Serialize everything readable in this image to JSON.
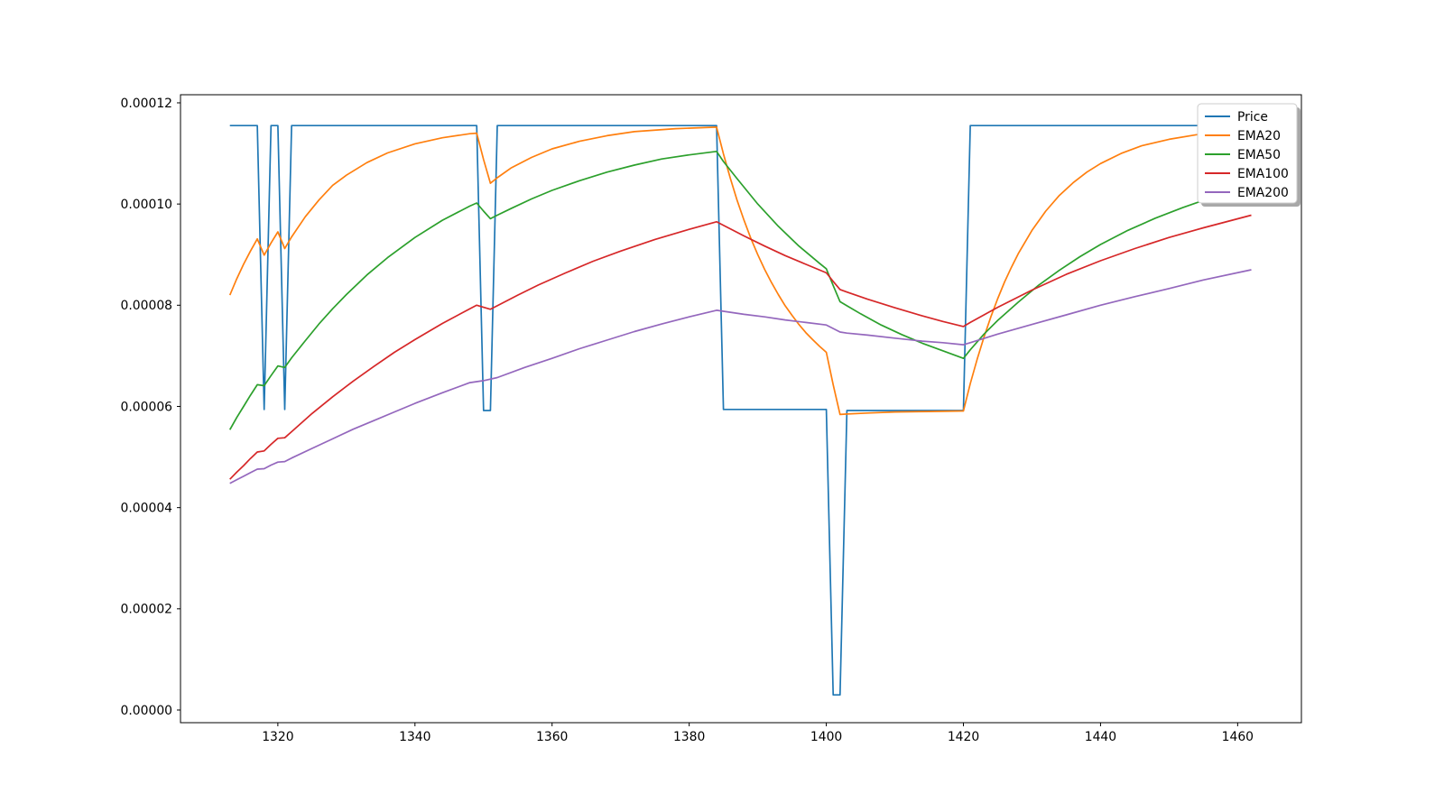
{
  "chart_data": {
    "type": "line",
    "title": "",
    "xlabel": "",
    "ylabel": "",
    "grid": false,
    "xlim": [
      1305.8,
      1469.3
    ],
    "ylim": [
      -2.5e-06,
      0.0001216
    ],
    "x_ticks": [
      1320,
      1340,
      1360,
      1380,
      1400,
      1420,
      1440,
      1460
    ],
    "x_tick_labels": [
      "1320",
      "1340",
      "1360",
      "1380",
      "1400",
      "1420",
      "1440",
      "1460"
    ],
    "y_ticks": [
      0.0,
      2e-05,
      4e-05,
      6e-05,
      8e-05,
      0.0001,
      0.00012
    ],
    "y_tick_labels": [
      "0.00000",
      "0.00002",
      "0.00004",
      "0.00006",
      "0.00008",
      "0.00010",
      "0.00012"
    ],
    "legend": {
      "position": "upper right",
      "shadow": true,
      "border_color": "#cccccc",
      "background": "#ffffff"
    },
    "series": [
      {
        "name": "Price",
        "color": "#1f77b4",
        "points": [
          [
            1313,
            0.0001155
          ],
          [
            1317,
            0.0001155
          ],
          [
            1318,
            5.94e-05
          ],
          [
            1319,
            0.0001155
          ],
          [
            1320,
            0.0001155
          ],
          [
            1321,
            5.94e-05
          ],
          [
            1322,
            0.0001155
          ],
          [
            1349,
            0.0001155
          ],
          [
            1350,
            5.92e-05
          ],
          [
            1351,
            5.92e-05
          ],
          [
            1352,
            0.0001155
          ],
          [
            1384,
            0.0001155
          ],
          [
            1385,
            5.94e-05
          ],
          [
            1400,
            5.94e-05
          ],
          [
            1401,
            3e-06
          ],
          [
            1402,
            3e-06
          ],
          [
            1403,
            5.92e-05
          ],
          [
            1420,
            5.92e-05
          ],
          [
            1421,
            0.0001155
          ],
          [
            1462,
            0.0001155
          ]
        ]
      },
      {
        "name": "EMA20",
        "color": "#ff7f0e",
        "points": [
          [
            1313,
            8.2e-05
          ],
          [
            1314,
            8.52e-05
          ],
          [
            1315,
            8.81e-05
          ],
          [
            1316,
            9.07e-05
          ],
          [
            1317,
            9.31e-05
          ],
          [
            1318,
            8.99e-05
          ],
          [
            1319,
            9.23e-05
          ],
          [
            1320,
            9.45e-05
          ],
          [
            1321,
            9.12e-05
          ],
          [
            1322,
            9.35e-05
          ],
          [
            1324,
            9.75e-05
          ],
          [
            1326,
            0.0001008
          ],
          [
            1328,
            0.0001037
          ],
          [
            1330,
            0.0001057
          ],
          [
            1333,
            0.0001082
          ],
          [
            1336,
            0.0001101
          ],
          [
            1340,
            0.0001119
          ],
          [
            1344,
            0.0001131
          ],
          [
            1348,
            0.0001139
          ],
          [
            1349,
            0.000114
          ],
          [
            1350,
            0.0001088
          ],
          [
            1351,
            0.0001041
          ],
          [
            1352,
            0.0001052
          ],
          [
            1354,
            0.0001071
          ],
          [
            1357,
            0.0001092
          ],
          [
            1360,
            0.0001109
          ],
          [
            1364,
            0.0001124
          ],
          [
            1368,
            0.0001135
          ],
          [
            1372,
            0.0001143
          ],
          [
            1378,
            0.0001149
          ],
          [
            1384,
            0.0001152
          ],
          [
            1385,
            0.0001099
          ],
          [
            1386,
            0.0001051
          ],
          [
            1387,
            0.0001007
          ],
          [
            1388,
            9.68e-05
          ],
          [
            1389,
            9.32e-05
          ],
          [
            1390,
            9e-05
          ],
          [
            1391,
            8.71e-05
          ],
          [
            1392,
            8.45e-05
          ],
          [
            1393,
            8.21e-05
          ],
          [
            1394,
            7.99e-05
          ],
          [
            1395,
            7.8e-05
          ],
          [
            1396,
            7.62e-05
          ],
          [
            1397,
            7.46e-05
          ],
          [
            1398,
            7.32e-05
          ],
          [
            1399,
            7.19e-05
          ],
          [
            1400,
            7.07e-05
          ],
          [
            1401,
            6.43e-05
          ],
          [
            1402,
            5.84e-05
          ],
          [
            1403,
            5.85e-05
          ],
          [
            1406,
            5.87e-05
          ],
          [
            1410,
            5.89e-05
          ],
          [
            1415,
            5.9e-05
          ],
          [
            1420,
            5.91e-05
          ],
          [
            1421,
            6.45e-05
          ],
          [
            1422,
            6.93e-05
          ],
          [
            1423,
            7.37e-05
          ],
          [
            1424,
            7.77e-05
          ],
          [
            1425,
            8.13e-05
          ],
          [
            1426,
            8.46e-05
          ],
          [
            1427,
            8.75e-05
          ],
          [
            1428,
            9.02e-05
          ],
          [
            1430,
            9.48e-05
          ],
          [
            1432,
            9.86e-05
          ],
          [
            1434,
            0.0001017
          ],
          [
            1436,
            0.0001042
          ],
          [
            1438,
            0.0001063
          ],
          [
            1440,
            0.000108
          ],
          [
            1443,
            0.00011
          ],
          [
            1446,
            0.0001115
          ],
          [
            1450,
            0.0001128
          ],
          [
            1454,
            0.0001137
          ],
          [
            1458,
            0.0001143
          ],
          [
            1462,
            0.0001147
          ]
        ]
      },
      {
        "name": "EMA50",
        "color": "#2ca02c",
        "points": [
          [
            1313,
            5.54e-05
          ],
          [
            1314,
            5.78e-05
          ],
          [
            1315,
            6e-05
          ],
          [
            1316,
            6.22e-05
          ],
          [
            1317,
            6.43e-05
          ],
          [
            1318,
            6.41e-05
          ],
          [
            1319,
            6.61e-05
          ],
          [
            1320,
            6.8e-05
          ],
          [
            1321,
            6.77e-05
          ],
          [
            1322,
            6.96e-05
          ],
          [
            1324,
            7.3e-05
          ],
          [
            1326,
            7.63e-05
          ],
          [
            1328,
            7.93e-05
          ],
          [
            1330,
            8.21e-05
          ],
          [
            1333,
            8.6e-05
          ],
          [
            1336,
            8.94e-05
          ],
          [
            1340,
            9.34e-05
          ],
          [
            1344,
            9.68e-05
          ],
          [
            1348,
            9.96e-05
          ],
          [
            1349,
            0.0001002
          ],
          [
            1350,
            9.86e-05
          ],
          [
            1351,
            9.71e-05
          ],
          [
            1352,
            9.78e-05
          ],
          [
            1354,
            9.91e-05
          ],
          [
            1357,
            0.000101
          ],
          [
            1360,
            0.0001027
          ],
          [
            1364,
            0.0001046
          ],
          [
            1368,
            0.0001063
          ],
          [
            1372,
            0.0001077
          ],
          [
            1376,
            0.0001089
          ],
          [
            1380,
            0.0001097
          ],
          [
            1384,
            0.0001104
          ],
          [
            1385,
            0.0001084
          ],
          [
            1387,
            0.000105
          ],
          [
            1390,
            0.0001
          ],
          [
            1393,
            9.56e-05
          ],
          [
            1396,
            9.17e-05
          ],
          [
            1399,
            8.83e-05
          ],
          [
            1400,
            8.72e-05
          ],
          [
            1401,
            8.39e-05
          ],
          [
            1402,
            8.07e-05
          ],
          [
            1403,
            7.99e-05
          ],
          [
            1405,
            7.83e-05
          ],
          [
            1408,
            7.61e-05
          ],
          [
            1411,
            7.42e-05
          ],
          [
            1414,
            7.25e-05
          ],
          [
            1417,
            7.1e-05
          ],
          [
            1420,
            6.95e-05
          ],
          [
            1421,
            7.12e-05
          ],
          [
            1423,
            7.43e-05
          ],
          [
            1425,
            7.7e-05
          ],
          [
            1428,
            8.06e-05
          ],
          [
            1431,
            8.4e-05
          ],
          [
            1434,
            8.69e-05
          ],
          [
            1437,
            8.96e-05
          ],
          [
            1440,
            9.2e-05
          ],
          [
            1444,
            9.48e-05
          ],
          [
            1448,
            9.72e-05
          ],
          [
            1452,
            9.93e-05
          ],
          [
            1456,
            0.0001012
          ],
          [
            1462,
            0.000104
          ]
        ]
      },
      {
        "name": "EMA100",
        "color": "#d62728",
        "points": [
          [
            1313,
            4.56e-05
          ],
          [
            1314,
            4.7e-05
          ],
          [
            1315,
            4.83e-05
          ],
          [
            1316,
            4.97e-05
          ],
          [
            1317,
            5.1e-05
          ],
          [
            1318,
            5.12e-05
          ],
          [
            1319,
            5.25e-05
          ],
          [
            1320,
            5.37e-05
          ],
          [
            1321,
            5.38e-05
          ],
          [
            1322,
            5.5e-05
          ],
          [
            1325,
            5.86e-05
          ],
          [
            1328,
            6.19e-05
          ],
          [
            1331,
            6.5e-05
          ],
          [
            1334,
            6.79e-05
          ],
          [
            1337,
            7.07e-05
          ],
          [
            1340,
            7.32e-05
          ],
          [
            1344,
            7.64e-05
          ],
          [
            1348,
            7.93e-05
          ],
          [
            1349,
            8e-05
          ],
          [
            1350,
            7.96e-05
          ],
          [
            1351,
            7.92e-05
          ],
          [
            1352,
            7.99e-05
          ],
          [
            1355,
            8.2e-05
          ],
          [
            1358,
            8.4e-05
          ],
          [
            1362,
            8.64e-05
          ],
          [
            1366,
            8.87e-05
          ],
          [
            1370,
            9.07e-05
          ],
          [
            1375,
            9.3e-05
          ],
          [
            1380,
            9.5e-05
          ],
          [
            1384,
            9.65e-05
          ],
          [
            1385,
            9.58e-05
          ],
          [
            1388,
            9.37e-05
          ],
          [
            1391,
            9.17e-05
          ],
          [
            1394,
            8.98e-05
          ],
          [
            1397,
            8.81e-05
          ],
          [
            1400,
            8.64e-05
          ],
          [
            1401,
            8.47e-05
          ],
          [
            1402,
            8.31e-05
          ],
          [
            1403,
            8.26e-05
          ],
          [
            1406,
            8.12e-05
          ],
          [
            1410,
            7.95e-05
          ],
          [
            1414,
            7.79e-05
          ],
          [
            1417,
            7.68e-05
          ],
          [
            1420,
            7.58e-05
          ],
          [
            1421,
            7.66e-05
          ],
          [
            1425,
            7.96e-05
          ],
          [
            1430,
            8.3e-05
          ],
          [
            1435,
            8.61e-05
          ],
          [
            1440,
            8.88e-05
          ],
          [
            1445,
            9.12e-05
          ],
          [
            1450,
            9.34e-05
          ],
          [
            1455,
            9.53e-05
          ],
          [
            1462,
            9.78e-05
          ]
        ]
      },
      {
        "name": "EMA200",
        "color": "#9467bd",
        "points": [
          [
            1313,
            4.48e-05
          ],
          [
            1314,
            4.55e-05
          ],
          [
            1315,
            4.62e-05
          ],
          [
            1316,
            4.69e-05
          ],
          [
            1317,
            4.76e-05
          ],
          [
            1318,
            4.77e-05
          ],
          [
            1319,
            4.84e-05
          ],
          [
            1320,
            4.9e-05
          ],
          [
            1321,
            4.91e-05
          ],
          [
            1322,
            4.98e-05
          ],
          [
            1325,
            5.17e-05
          ],
          [
            1328,
            5.36e-05
          ],
          [
            1331,
            5.55e-05
          ],
          [
            1334,
            5.72e-05
          ],
          [
            1337,
            5.89e-05
          ],
          [
            1340,
            6.06e-05
          ],
          [
            1344,
            6.27e-05
          ],
          [
            1348,
            6.47e-05
          ],
          [
            1350,
            6.51e-05
          ],
          [
            1352,
            6.57e-05
          ],
          [
            1356,
            6.77e-05
          ],
          [
            1360,
            6.95e-05
          ],
          [
            1364,
            7.14e-05
          ],
          [
            1368,
            7.31e-05
          ],
          [
            1372,
            7.48e-05
          ],
          [
            1376,
            7.63e-05
          ],
          [
            1380,
            7.77e-05
          ],
          [
            1384,
            7.9e-05
          ],
          [
            1385,
            7.88e-05
          ],
          [
            1388,
            7.82e-05
          ],
          [
            1391,
            7.77e-05
          ],
          [
            1394,
            7.71e-05
          ],
          [
            1397,
            7.66e-05
          ],
          [
            1400,
            7.61e-05
          ],
          [
            1401,
            7.54e-05
          ],
          [
            1402,
            7.47e-05
          ],
          [
            1403,
            7.45e-05
          ],
          [
            1406,
            7.41e-05
          ],
          [
            1410,
            7.35e-05
          ],
          [
            1414,
            7.29e-05
          ],
          [
            1417,
            7.26e-05
          ],
          [
            1420,
            7.22e-05
          ],
          [
            1421,
            7.26e-05
          ],
          [
            1425,
            7.43e-05
          ],
          [
            1430,
            7.62e-05
          ],
          [
            1435,
            7.81e-05
          ],
          [
            1440,
            8e-05
          ],
          [
            1445,
            8.17e-05
          ],
          [
            1450,
            8.33e-05
          ],
          [
            1455,
            8.5e-05
          ],
          [
            1462,
            8.7e-05
          ]
        ]
      }
    ]
  }
}
